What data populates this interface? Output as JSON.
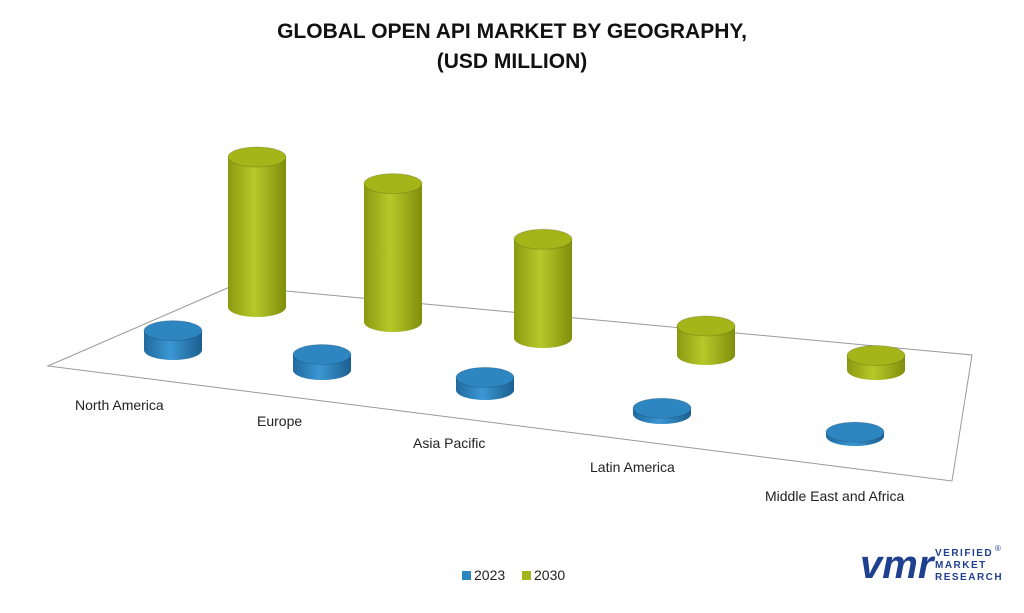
{
  "chart_data": {
    "type": "bar3d",
    "title": "GLOBAL OPEN API MARKET BY GEOGRAPHY,",
    "subtitle": "(USD MILLION)",
    "categories": [
      "North America",
      "Europe",
      "Asia Pacific",
      "Latin America",
      "Middle East and Africa"
    ],
    "series": [
      {
        "name": "2023",
        "color": "#2e86c1",
        "values": [
          20,
          16,
          13,
          6,
          4
        ]
      },
      {
        "name": "2030",
        "color": "#a4b51a",
        "values": [
          155,
          143,
          102,
          30,
          15
        ]
      }
    ]
  },
  "logo": {
    "mark": "vmr",
    "lines": [
      "VERIFIED",
      "MARKET",
      "RESEARCH"
    ],
    "registered": "®"
  }
}
